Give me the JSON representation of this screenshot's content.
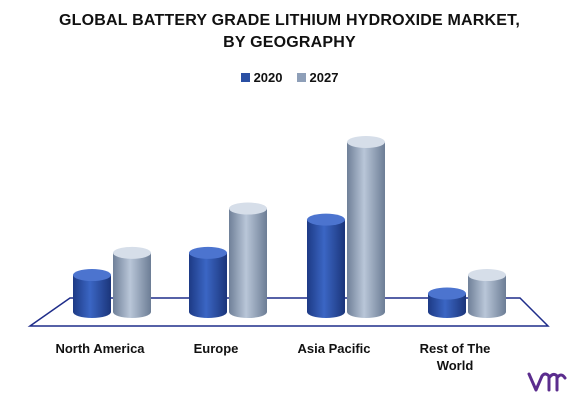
{
  "header": {
    "title_line1": "GLOBAL BATTERY GRADE LITHIUM HYDROXIDE MARKET,",
    "title_line2": "BY GEOGRAPHY"
  },
  "colors": {
    "series_2020": "#2a4fa3",
    "series_2027": "#8e9fb8",
    "axis": "#1f2d8a",
    "logo": "#5b2d8e"
  },
  "chart_data": {
    "type": "bar",
    "categories": [
      "North America",
      "Europe",
      "Asia Pacific",
      "Rest of The World"
    ],
    "series": [
      {
        "name": "2020",
        "values": [
          1.0,
          1.6,
          2.5,
          0.5
        ]
      },
      {
        "name": "2027",
        "values": [
          1.6,
          2.8,
          4.6,
          1.0
        ]
      }
    ],
    "title": "GLOBAL BATTERY GRADE LITHIUM HYDROXIDE MARKET, BY GEOGRAPHY",
    "legend_position": "top-center",
    "grid": false
  }
}
